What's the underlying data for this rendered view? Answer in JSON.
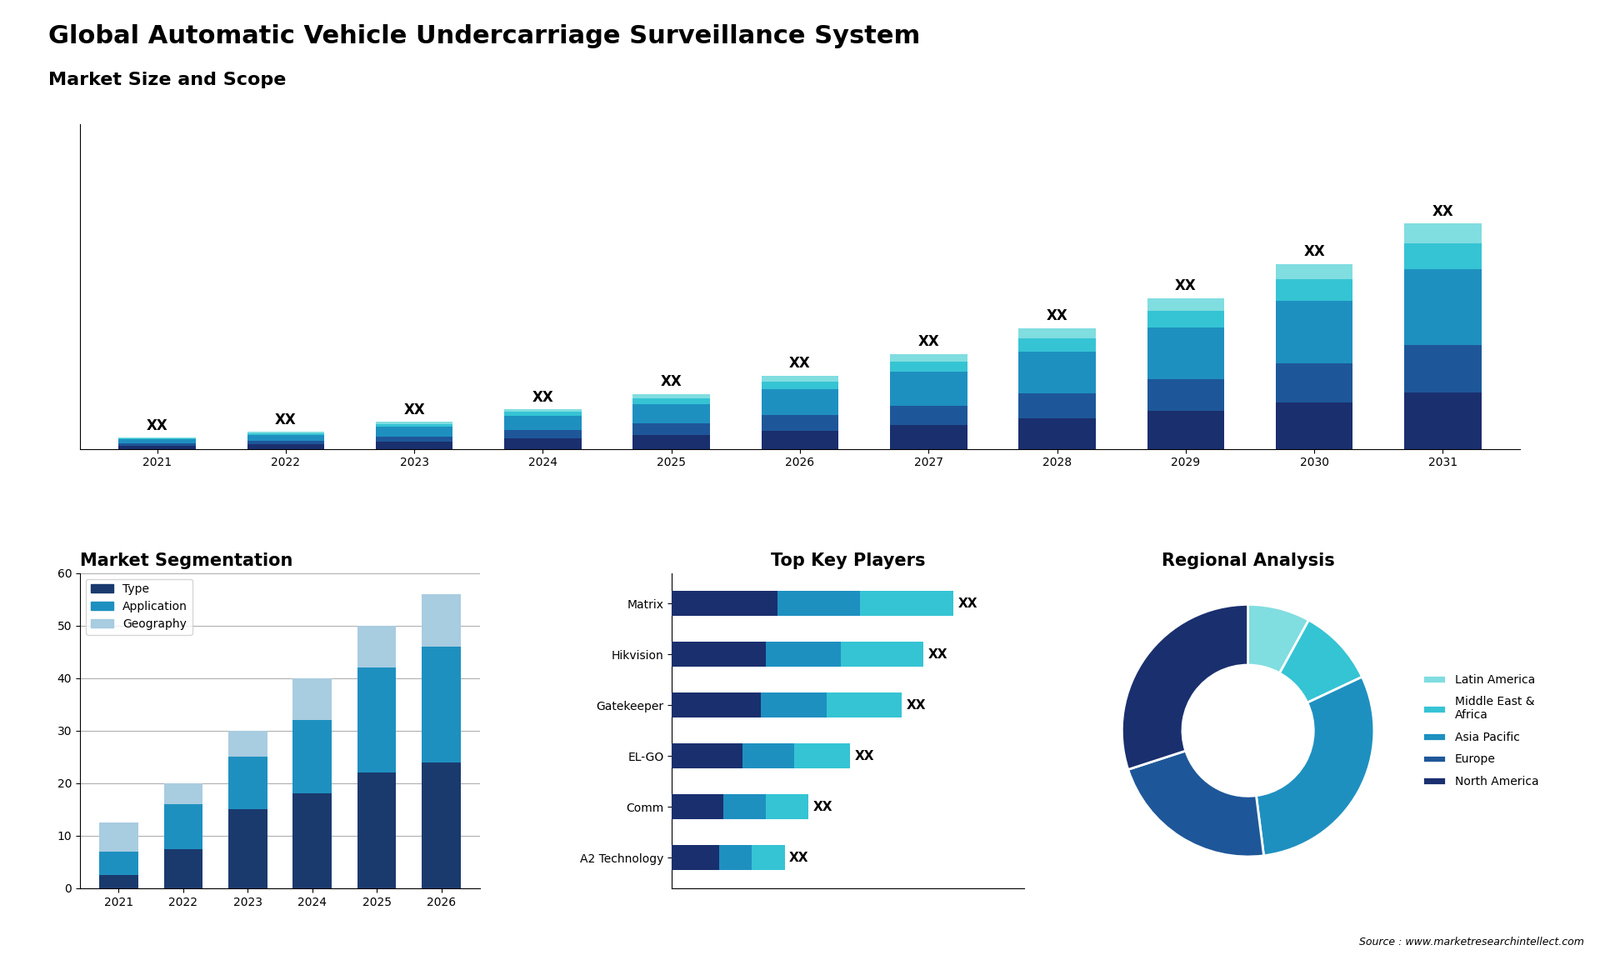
{
  "chart_data": [
    {
      "type": "bar",
      "stacked": true,
      "title": "Global Automatic Vehicle Undercarriage Surveillance System",
      "subtitle": "Market Size and Scope",
      "categories": [
        "2021",
        "2022",
        "2023",
        "2024",
        "2025",
        "2026",
        "2027",
        "2028",
        "2029",
        "2030",
        "2031"
      ],
      "series": [
        {
          "color": "#1a2f6e",
          "values": [
            1.5,
            2.2,
            3.2,
            4.8,
            6.5,
            8.5,
            11.0,
            14.0,
            17.5,
            21.5,
            26.0
          ]
        },
        {
          "color": "#1e5799",
          "values": [
            1.0,
            1.5,
            2.5,
            3.8,
            5.2,
            7.0,
            9.0,
            11.5,
            14.5,
            18.0,
            22.0
          ]
        },
        {
          "color": "#1e90c0",
          "values": [
            1.8,
            2.8,
            4.5,
            6.5,
            9.0,
            12.0,
            15.5,
            19.5,
            24.0,
            29.0,
            35.0
          ]
        },
        {
          "color": "#35c4d4",
          "values": [
            0.5,
            0.8,
            1.3,
            1.9,
            2.7,
            3.7,
            4.8,
            6.2,
            7.8,
            9.7,
            12.0
          ]
        },
        {
          "color": "#80dde0",
          "values": [
            0.4,
            0.6,
            0.9,
            1.3,
            1.9,
            2.6,
            3.5,
            4.6,
            5.9,
            7.3,
            9.0
          ]
        }
      ],
      "annotations": [
        "XX",
        "XX",
        "XX",
        "XX",
        "XX",
        "XX",
        "XX",
        "XX",
        "XX",
        "XX",
        "XX"
      ],
      "ylim": [
        0,
        150
      ],
      "tick_labels": "x",
      "grid": false
    },
    {
      "type": "bar",
      "stacked": true,
      "title": "Market Segmentation",
      "categories": [
        "2021",
        "2022",
        "2023",
        "2024",
        "2025",
        "2026"
      ],
      "series": [
        {
          "name": "Type",
          "color": "#1a3a6e",
          "values": [
            2.5,
            7.5,
            15.0,
            18.0,
            22.0,
            24.0
          ]
        },
        {
          "name": "Application",
          "color": "#1e90c0",
          "values": [
            4.5,
            8.5,
            10.0,
            14.0,
            20.0,
            22.0
          ]
        },
        {
          "name": "Geography",
          "color": "#a8cce0",
          "values": [
            5.5,
            4.0,
            5.0,
            8.0,
            8.0,
            10.0
          ]
        }
      ],
      "ylim": [
        0,
        60
      ],
      "yticks": [
        0,
        10,
        20,
        30,
        40,
        50,
        60
      ],
      "grid": true,
      "legend": "upper left"
    },
    {
      "type": "bar",
      "stacked": true,
      "orientation": "horizontal",
      "title": "Top Key Players",
      "categories": [
        "Matrix",
        "Hikvision",
        "Gatekeeper",
        "EL-GO",
        "Comm",
        "A2 Technology"
      ],
      "series": [
        {
          "color": "#1a2f6e",
          "values": [
            4.5,
            4.0,
            3.8,
            3.0,
            2.2,
            2.0
          ]
        },
        {
          "color": "#1e90c0",
          "values": [
            3.5,
            3.2,
            2.8,
            2.2,
            1.8,
            1.4
          ]
        },
        {
          "color": "#35c4d4",
          "values": [
            4.0,
            3.5,
            3.2,
            2.4,
            1.8,
            1.4
          ]
        }
      ],
      "annotations": [
        "XX",
        "XX",
        "XX",
        "XX",
        "XX",
        "XX"
      ],
      "xlim": [
        0,
        15
      ],
      "tick_labels": "y",
      "grid": false
    },
    {
      "type": "pie",
      "title": "Regional Analysis",
      "categories": [
        "Latin America",
        "Middle East &\nAfrica",
        "Asia Pacific",
        "Europe",
        "North America"
      ],
      "values": [
        8,
        10,
        30,
        22,
        30
      ],
      "colors": [
        "#80dde0",
        "#35c4d4",
        "#1e90c0",
        "#1e5799",
        "#1a2f6e"
      ],
      "legend": "center left",
      "annotations": [
        "Source : www.marketresearchintellect.com"
      ]
    }
  ]
}
